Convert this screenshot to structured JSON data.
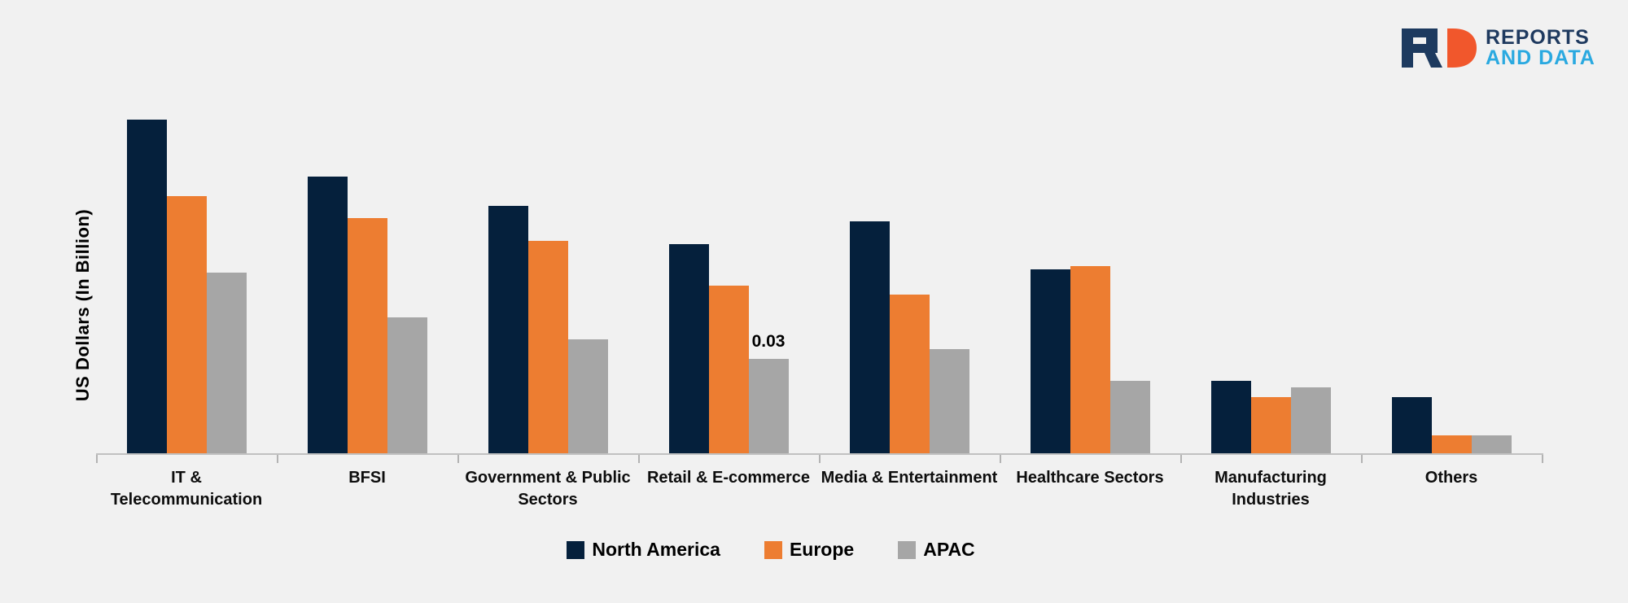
{
  "logo": {
    "reports_text": "REPORTS",
    "and_data_text": "AND DATA",
    "mark_navy": "#1d3a5f",
    "mark_orange": "#f1572c",
    "text_navy": "#1f3a5f",
    "text_blue": "#2aa9e0"
  },
  "colors": {
    "background": "#f1f1f1",
    "axis_line": "#c1c1c1",
    "tick": "#b3b3b3",
    "label_text": "#0d0d0d"
  },
  "chart_data": {
    "type": "bar",
    "title": "",
    "xlabel": "",
    "ylabel": "US Dollars  (In Billion)",
    "ylim": [
      0,
      0.117
    ],
    "grid": false,
    "legend_position": "bottom",
    "value_axis_labels_visible": false,
    "categories": [
      "IT & Telecommunication",
      "BFSI",
      "Government & Public Sectors",
      "Retail & E-commerce",
      "Media & Entertainment",
      "Healthcare Sectors",
      "Manufacturing Industries",
      "Others"
    ],
    "category_label_lines": [
      [
        "IT &",
        "Telecommunication"
      ],
      [
        "BFSI"
      ],
      [
        "Government & Public",
        "Sectors"
      ],
      [
        "Retail & E-commerce"
      ],
      [
        "Media & Entertainment"
      ],
      [
        "Healthcare Sectors"
      ],
      [
        "Manufacturing",
        "Industries"
      ],
      [
        "Others"
      ]
    ],
    "series": [
      {
        "name": "North America",
        "color": "#05203c",
        "values": [
          0.105,
          0.087,
          0.078,
          0.066,
          0.073,
          0.058,
          0.023,
          0.018
        ]
      },
      {
        "name": "Europe",
        "color": "#ed7d31",
        "values": [
          0.081,
          0.074,
          0.067,
          0.053,
          0.05,
          0.059,
          0.018,
          0.006
        ]
      },
      {
        "name": "APAC",
        "color": "#a6a6a6",
        "values": [
          0.057,
          0.043,
          0.036,
          0.03,
          0.033,
          0.023,
          0.021,
          0.006
        ]
      }
    ],
    "data_labels": [
      {
        "series_index": 2,
        "category_index": 3,
        "text": "0.03"
      }
    ]
  }
}
